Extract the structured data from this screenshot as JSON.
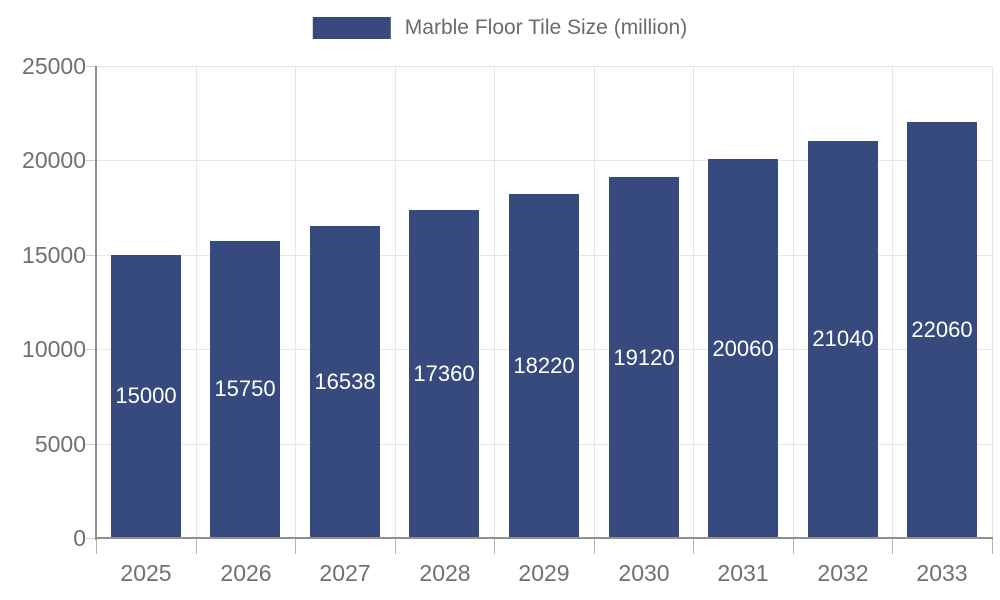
{
  "chart_data": {
    "type": "bar",
    "title": "",
    "legend_label": "Marble Floor Tile Size (million)",
    "legend_position": "top",
    "categories": [
      "2025",
      "2026",
      "2027",
      "2028",
      "2029",
      "2030",
      "2031",
      "2032",
      "2033"
    ],
    "values": [
      15000,
      15750,
      16538,
      17360,
      18220,
      19120,
      20060,
      21040,
      22060
    ],
    "bar_labels": [
      "15000",
      "15750",
      "16538",
      "17360",
      "18220",
      "19120",
      "20060",
      "21040",
      "22060"
    ],
    "xlabel": "",
    "ylabel": "",
    "ylim": [
      0,
      25000
    ],
    "yticks": [
      0,
      5000,
      10000,
      15000,
      20000,
      25000
    ],
    "ytick_labels": [
      "0",
      "5000",
      "10000",
      "15000",
      "20000",
      "25000"
    ],
    "grid": true,
    "colors": {
      "bar": "#364A7E",
      "bar_label_text": "#ffffff",
      "axis_line": "#8f8f8f",
      "gridline": "#e6e6e6",
      "tick_text": "#707070",
      "legend_text": "#6b6b6b",
      "background": "#ffffff"
    }
  }
}
